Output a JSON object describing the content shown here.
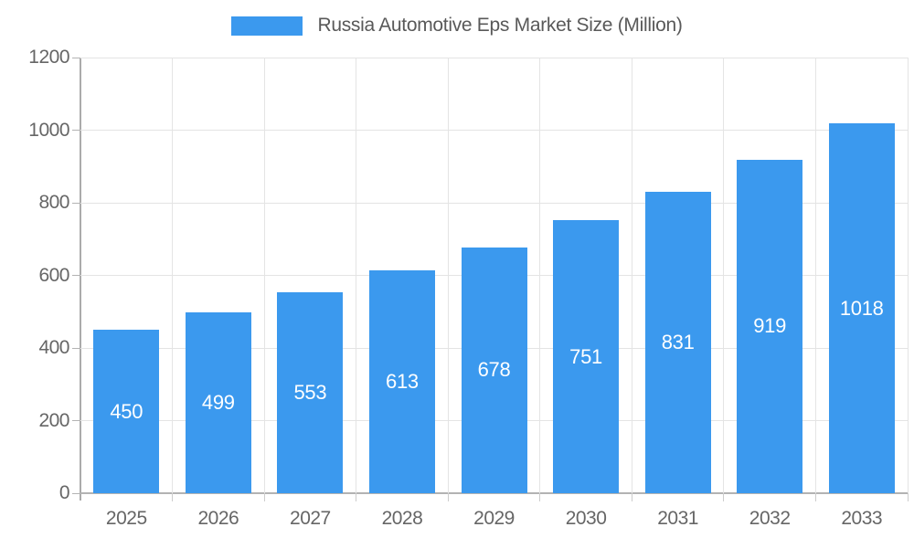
{
  "chart_data": {
    "type": "bar",
    "title": "Russia Automotive Eps Market Size (Million)",
    "legend": {
      "position": "top",
      "entries": [
        {
          "label": "Russia Automotive Eps Market Size (Million)",
          "color": "#3b99ee"
        }
      ]
    },
    "categories": [
      "2025",
      "2026",
      "2027",
      "2028",
      "2029",
      "2030",
      "2031",
      "2032",
      "2033"
    ],
    "values": [
      450,
      499,
      553,
      613,
      678,
      751,
      831,
      919,
      1018
    ],
    "value_labels_shown": true,
    "xlabel": "",
    "ylabel": "",
    "ylim": [
      0,
      1200
    ],
    "yticks": [
      0,
      200,
      400,
      600,
      800,
      1000,
      1200
    ],
    "grid": true,
    "colors": {
      "bar": "#3b99ee",
      "grid_line": "#e4e4e4",
      "axis_line": "#b3b3b3",
      "tick_text": "#666666",
      "title_text": "#595959",
      "value_label_text": "#ffffff"
    }
  }
}
